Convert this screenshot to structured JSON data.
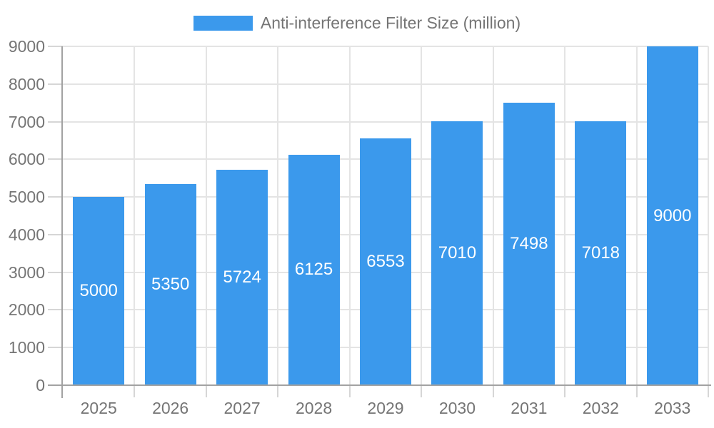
{
  "legend": {
    "label": "Anti-interference Filter Size (million)"
  },
  "chart_data": {
    "type": "bar",
    "title": "",
    "series_name": "Anti-interference Filter Size (million)",
    "categories": [
      "2025",
      "2026",
      "2027",
      "2028",
      "2029",
      "2030",
      "2031",
      "2032",
      "2033"
    ],
    "values": [
      5000,
      5350,
      5724,
      6125,
      6553,
      7010,
      7498,
      7018,
      9000
    ],
    "xlabel": "",
    "ylabel": "",
    "ylim": [
      0,
      9000
    ],
    "ytick_interval": 1000,
    "yticks": [
      0,
      1000,
      2000,
      3000,
      4000,
      5000,
      6000,
      7000,
      8000,
      9000
    ],
    "data_labels_inside_bars": true,
    "grid": true,
    "legend_position": "top",
    "colors": {
      "bar": "#3b99ec",
      "bar_label": "#ffffff",
      "axis_text": "#757575",
      "grid_line": "#e4e4e4",
      "tick_line": "#d6d6d6",
      "axis_line": "#a2a2a2",
      "background": "#ffffff"
    }
  }
}
